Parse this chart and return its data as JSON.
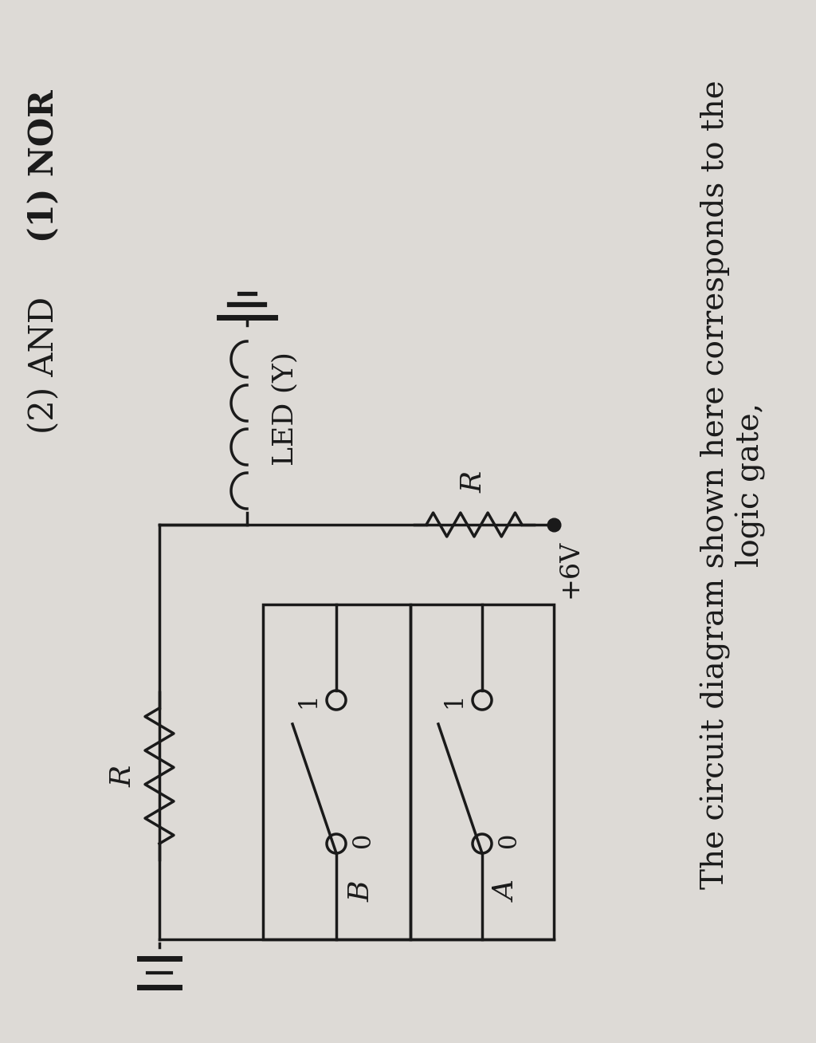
{
  "bg_color": "#ccc8c4",
  "text_bg": "#e8e4e0",
  "title_text": "The circuit diagram shown here corresponds to the\nlogic gate,",
  "option1": "(1) NOR",
  "option2": "(2) AND",
  "line_color": "#1a1a1a",
  "text_color": "#1a1a1a",
  "font_size": 28,
  "label_font_size": 26,
  "small_font_size": 22,
  "lw": 2.5
}
